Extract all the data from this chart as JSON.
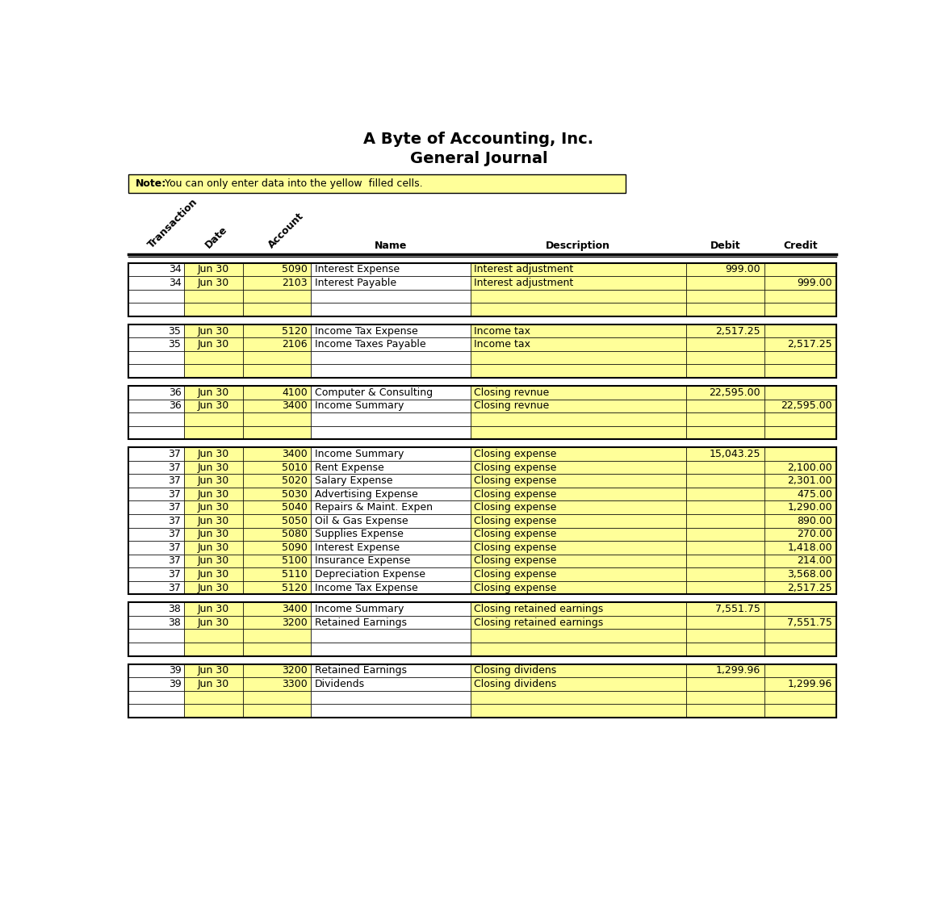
{
  "title_line1": "A Byte of Accounting, Inc.",
  "title_line2": "General Journal",
  "yellow_fill": "#FFFF99",
  "white_fill": "#FFFFFF",
  "groups": [
    {
      "id": 34,
      "rows": [
        {
          "trans": "34",
          "date": "Jun 30",
          "acct": "5090",
          "name": "Interest Expense",
          "desc": "Interest adjustment",
          "debit": "999.00",
          "credit": ""
        },
        {
          "trans": "34",
          "date": "Jun 30",
          "acct": "2103",
          "name": "Interest Payable",
          "desc": "Interest adjustment",
          "debit": "",
          "credit": "999.00"
        },
        {
          "trans": "",
          "date": "",
          "acct": "",
          "name": "",
          "desc": "",
          "debit": "",
          "credit": ""
        },
        {
          "trans": "",
          "date": "",
          "acct": "",
          "name": "",
          "desc": "",
          "debit": "",
          "credit": ""
        }
      ]
    },
    {
      "id": 35,
      "rows": [
        {
          "trans": "35",
          "date": "Jun 30",
          "acct": "5120",
          "name": "Income Tax Expense",
          "desc": "Income tax",
          "debit": "2,517.25",
          "credit": ""
        },
        {
          "trans": "35",
          "date": "Jun 30",
          "acct": "2106",
          "name": "Income Taxes Payable",
          "desc": "Income tax",
          "debit": "",
          "credit": "2,517.25"
        },
        {
          "trans": "",
          "date": "",
          "acct": "",
          "name": "",
          "desc": "",
          "debit": "",
          "credit": ""
        },
        {
          "trans": "",
          "date": "",
          "acct": "",
          "name": "",
          "desc": "",
          "debit": "",
          "credit": ""
        }
      ]
    },
    {
      "id": 36,
      "rows": [
        {
          "trans": "36",
          "date": "Jun 30",
          "acct": "4100",
          "name": "Computer & Consulting",
          "desc": "Closing revnue",
          "debit": "22,595.00",
          "credit": ""
        },
        {
          "trans": "36",
          "date": "Jun 30",
          "acct": "3400",
          "name": "Income Summary",
          "desc": "Closing revnue",
          "debit": "",
          "credit": "22,595.00"
        },
        {
          "trans": "",
          "date": "",
          "acct": "",
          "name": "",
          "desc": "",
          "debit": "",
          "credit": ""
        },
        {
          "trans": "",
          "date": "",
          "acct": "",
          "name": "",
          "desc": "",
          "debit": "",
          "credit": ""
        }
      ]
    },
    {
      "id": 37,
      "rows": [
        {
          "trans": "37",
          "date": "Jun 30",
          "acct": "3400",
          "name": "Income Summary",
          "desc": "Closing expense",
          "debit": "15,043.25",
          "credit": ""
        },
        {
          "trans": "37",
          "date": "Jun 30",
          "acct": "5010",
          "name": "Rent Expense",
          "desc": "Closing expense",
          "debit": "",
          "credit": "2,100.00"
        },
        {
          "trans": "37",
          "date": "Jun 30",
          "acct": "5020",
          "name": "Salary Expense",
          "desc": "Closing expense",
          "debit": "",
          "credit": "2,301.00"
        },
        {
          "trans": "37",
          "date": "Jun 30",
          "acct": "5030",
          "name": "Advertising Expense",
          "desc": "Closing expense",
          "debit": "",
          "credit": "475.00"
        },
        {
          "trans": "37",
          "date": "Jun 30",
          "acct": "5040",
          "name": "Repairs & Maint. Expen",
          "desc": "Closing expense",
          "debit": "",
          "credit": "1,290.00"
        },
        {
          "trans": "37",
          "date": "Jun 30",
          "acct": "5050",
          "name": "Oil & Gas Expense",
          "desc": "Closing expense",
          "debit": "",
          "credit": "890.00"
        },
        {
          "trans": "37",
          "date": "Jun 30",
          "acct": "5080",
          "name": "Supplies Expense",
          "desc": "Closing expense",
          "debit": "",
          "credit": "270.00"
        },
        {
          "trans": "37",
          "date": "Jun 30",
          "acct": "5090",
          "name": "Interest Expense",
          "desc": "Closing expense",
          "debit": "",
          "credit": "1,418.00"
        },
        {
          "trans": "37",
          "date": "Jun 30",
          "acct": "5100",
          "name": "Insurance Expense",
          "desc": "Closing expense",
          "debit": "",
          "credit": "214.00"
        },
        {
          "trans": "37",
          "date": "Jun 30",
          "acct": "5110",
          "name": "Depreciation Expense",
          "desc": "Closing expense",
          "debit": "",
          "credit": "3,568.00"
        },
        {
          "trans": "37",
          "date": "Jun 30",
          "acct": "5120",
          "name": "Income Tax Expense",
          "desc": "Closing expense",
          "debit": "",
          "credit": "2,517.25"
        }
      ]
    },
    {
      "id": 38,
      "rows": [
        {
          "trans": "38",
          "date": "Jun 30",
          "acct": "3400",
          "name": "Income Summary",
          "desc": "Closing retained earnings",
          "debit": "7,551.75",
          "credit": ""
        },
        {
          "trans": "38",
          "date": "Jun 30",
          "acct": "3200",
          "name": "Retained Earnings",
          "desc": "Closing retained earnings",
          "debit": "",
          "credit": "7,551.75"
        },
        {
          "trans": "",
          "date": "",
          "acct": "",
          "name": "",
          "desc": "",
          "debit": "",
          "credit": ""
        },
        {
          "trans": "",
          "date": "",
          "acct": "",
          "name": "",
          "desc": "",
          "debit": "",
          "credit": ""
        }
      ]
    },
    {
      "id": 39,
      "rows": [
        {
          "trans": "39",
          "date": "Jun 30",
          "acct": "3200",
          "name": "Retained Earnings",
          "desc": "Closing dividens",
          "debit": "1,299.96",
          "credit": ""
        },
        {
          "trans": "39",
          "date": "Jun 30",
          "acct": "3300",
          "name": "Dividends",
          "desc": "Closing dividens",
          "debit": "",
          "credit": "1,299.96"
        },
        {
          "trans": "",
          "date": "",
          "acct": "",
          "name": "",
          "desc": "",
          "debit": "",
          "credit": ""
        },
        {
          "trans": "",
          "date": "",
          "acct": "",
          "name": "",
          "desc": "",
          "debit": "",
          "credit": ""
        }
      ]
    }
  ]
}
